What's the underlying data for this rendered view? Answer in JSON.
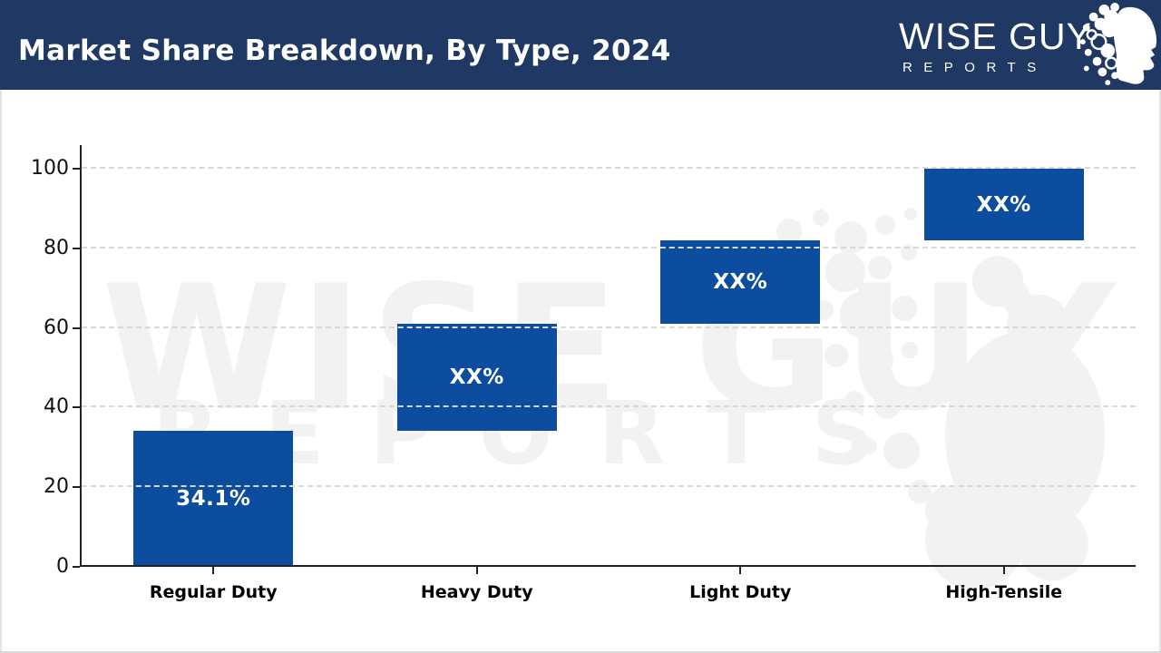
{
  "header": {
    "title": "Market Share Breakdown, By Type, 2024",
    "logo": {
      "wordmark": "WISE GUY",
      "subtext": "REPORTS"
    }
  },
  "colors": {
    "header_bg": "#1f3864",
    "bar": "#0d4da0",
    "grid": "#d8d8d8",
    "axis": "#222222",
    "watermark": "#f2f2f2",
    "value_label": "#ffffff"
  },
  "watermark": {
    "line1": "WISE GUY",
    "line2": "REPORTS"
  },
  "chart_data": {
    "type": "bar",
    "subtype": "waterfall",
    "title": "Market Share Breakdown, By Type, 2024",
    "xlabel": "",
    "ylabel": "",
    "categories": [
      "Regular Duty",
      "Heavy Duty",
      "Light Duty",
      "High-Tensile"
    ],
    "segments": [
      {
        "category": "Regular Duty",
        "start": 0,
        "end": 34.1,
        "label": "34.1%"
      },
      {
        "category": "Heavy Duty",
        "start": 34.1,
        "end": 61,
        "label": "XX%"
      },
      {
        "category": "Light Duty",
        "start": 61,
        "end": 82,
        "label": "XX%"
      },
      {
        "category": "High-Tensile",
        "start": 82,
        "end": 100,
        "label": "XX%"
      }
    ],
    "yticks": [
      0,
      20,
      40,
      60,
      80,
      100
    ],
    "ylim": [
      0,
      105
    ],
    "grid": true,
    "legend": false
  }
}
